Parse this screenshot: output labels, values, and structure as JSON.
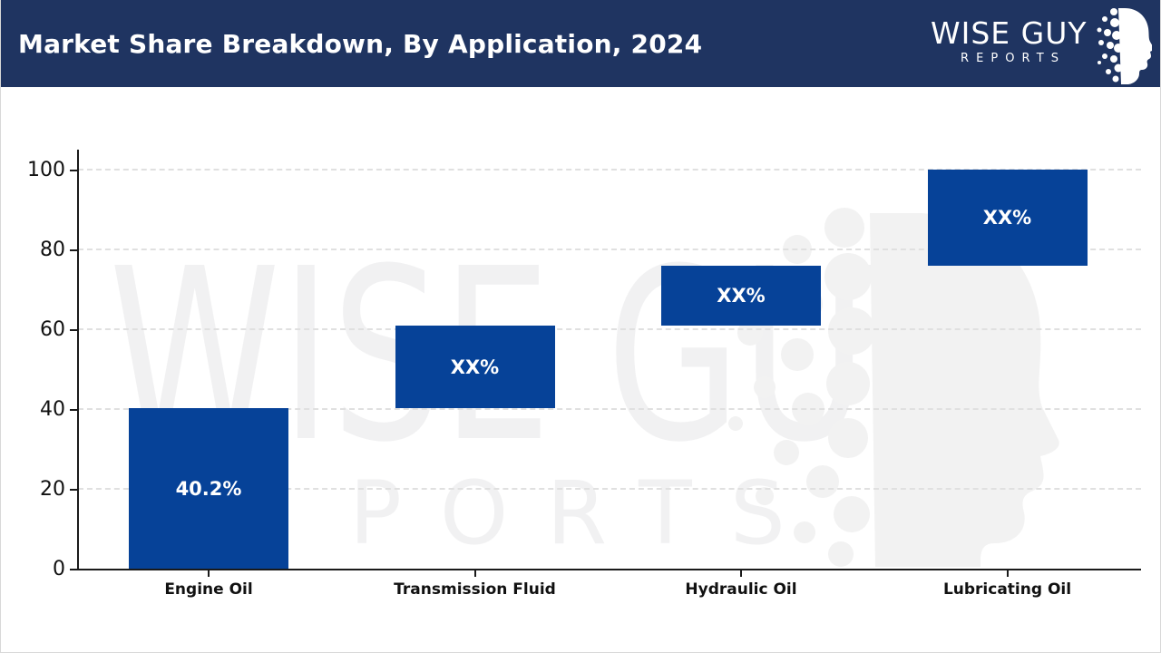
{
  "header": {
    "title": "Market Share Breakdown, By Application, 2024",
    "logo": {
      "line1": "WISE GUY",
      "line2": "REPORTS"
    },
    "bg_color": "#1f3461"
  },
  "watermark": {
    "line1": "WISE GUY",
    "line2": "PORTS"
  },
  "chart_data": {
    "type": "bar",
    "subtype": "waterfall",
    "title": "Market Share Breakdown, By Application, 2024",
    "categories": [
      "Engine Oil",
      "Transmission Fluid",
      "Hydraulic Oil",
      "Lubricating Oil"
    ],
    "segments": [
      {
        "category": "Engine Oil",
        "start": 0,
        "end": 40.2,
        "value": 40.2,
        "label": "40.2%"
      },
      {
        "category": "Transmission Fluid",
        "start": 40.2,
        "end": 60.8,
        "value": 20.6,
        "label": "XX%"
      },
      {
        "category": "Hydraulic Oil",
        "start": 60.8,
        "end": 76.0,
        "value": 15.2,
        "label": "XX%"
      },
      {
        "category": "Lubricating Oil",
        "start": 76.0,
        "end": 100.0,
        "value": 24.0,
        "label": "XX%"
      }
    ],
    "xlabel": "",
    "ylabel": "",
    "ylim": [
      0,
      100
    ],
    "yticks": [
      0,
      20,
      40,
      60,
      80,
      100
    ],
    "grid": "horizontal-dashed",
    "legend": "none",
    "bar_color": "#064298",
    "bar_label_color": "#ffffff",
    "axis_color": "#1a1a1a",
    "gridline_color": "#e0e0e0"
  }
}
